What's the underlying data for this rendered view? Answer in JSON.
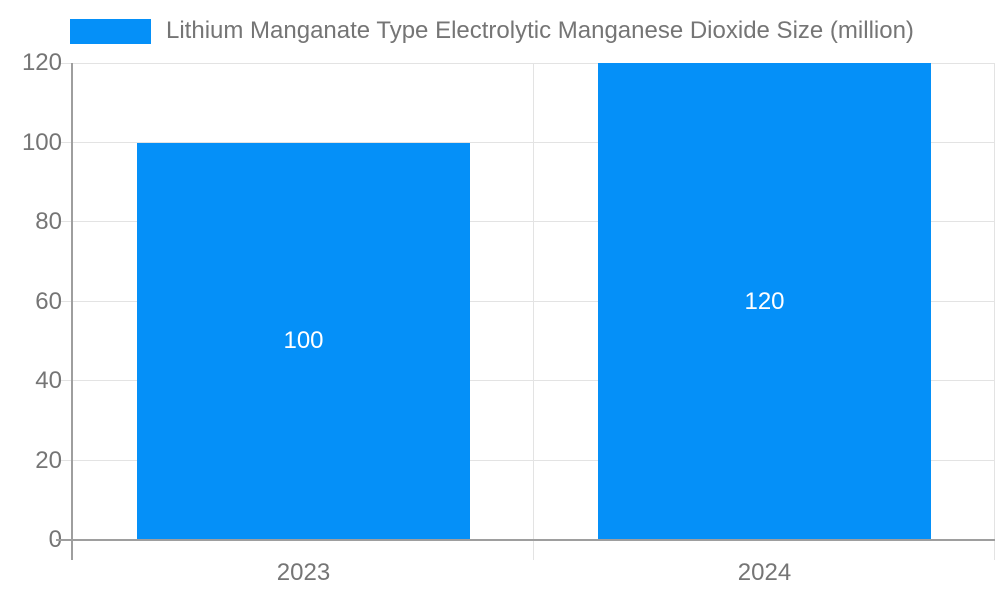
{
  "legend": {
    "label": "Lithium Manganate Type Electrolytic Manganese Dioxide Size (million)"
  },
  "chart_data": {
    "type": "bar",
    "categories": [
      "2023",
      "2024"
    ],
    "values": [
      100,
      120
    ],
    "series_name": "Lithium Manganate Type Electrolytic Manganese Dioxide Size (million)",
    "title": "",
    "xlabel": "",
    "ylabel": "",
    "ylim": [
      0,
      120
    ],
    "yticks": [
      0,
      20,
      40,
      60,
      80,
      100,
      120
    ],
    "grid": true,
    "legend_position": "top",
    "bar_color": "#0590f8",
    "value_label_color": "#ffffff",
    "axis_text_color": "#757575",
    "gridline_color": "#e3e3e3",
    "axis_line_color": "#9e9e9e"
  }
}
